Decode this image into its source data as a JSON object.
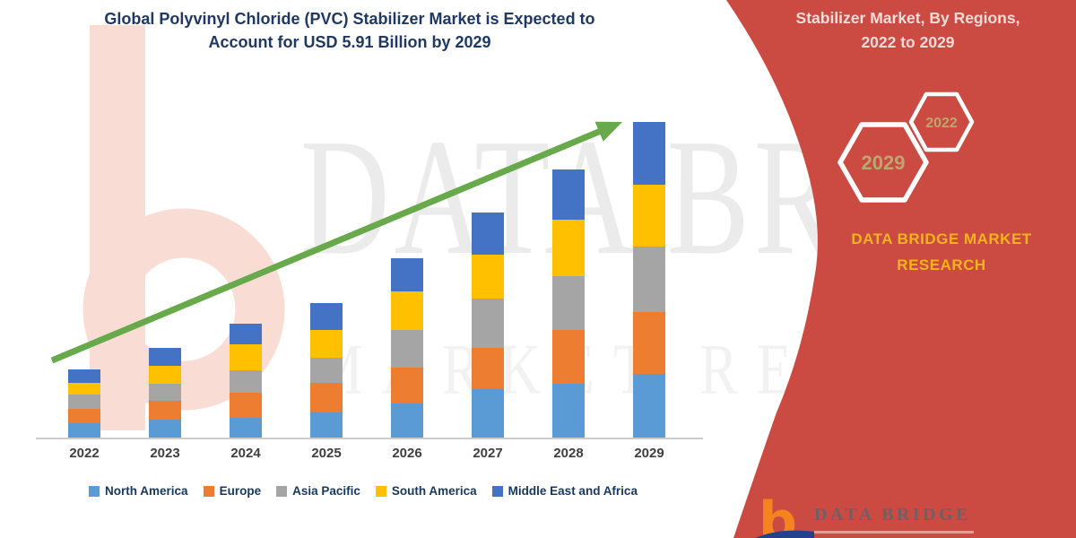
{
  "chart_data": {
    "type": "bar",
    "stacked": true,
    "title": "Global Polyvinyl Chloride (PVC) Stabilizer Market is Expected to Account for USD 5.91 Billion by 2029",
    "title_lines": [
      "Global Polyvinyl Chloride (PVC) Stabilizer Market is Expected to",
      "Account for USD 5.91 Billion by 2029"
    ],
    "unit": "USD Billion (segment values estimated from bar heights; 2029 total anchored to 5.91)",
    "categories": [
      "2022",
      "2023",
      "2024",
      "2025",
      "2026",
      "2027",
      "2028",
      "2029"
    ],
    "series": [
      {
        "name": "North America",
        "color": "#5b9bd5",
        "values": [
          0.28,
          0.35,
          0.39,
          0.49,
          0.65,
          0.92,
          1.02,
          1.21
        ]
      },
      {
        "name": "Europe",
        "color": "#ed7d31",
        "values": [
          0.27,
          0.35,
          0.47,
          0.55,
          0.67,
          0.77,
          1.0,
          1.15
        ]
      },
      {
        "name": "Asia Pacific",
        "color": "#a5a5a5",
        "values": [
          0.27,
          0.32,
          0.42,
          0.47,
          0.7,
          0.92,
          1.02,
          1.22
        ]
      },
      {
        "name": "South America",
        "color": "#ffc000",
        "values": [
          0.22,
          0.33,
          0.47,
          0.52,
          0.72,
          0.82,
          1.04,
          1.16
        ]
      },
      {
        "name": "Middle East and Africa",
        "color": "#4472c4",
        "values": [
          0.25,
          0.35,
          0.39,
          0.5,
          0.62,
          0.79,
          0.95,
          1.17
        ]
      }
    ],
    "totals": [
      1.29,
      1.7,
      2.14,
      2.53,
      3.36,
      4.22,
      5.03,
      5.91
    ],
    "xlabel": "",
    "ylabel": "",
    "y_axis_visible": false,
    "grid": false,
    "legend_position": "bottom",
    "annotations": [
      "green upward trend arrow across bars"
    ]
  },
  "panel": {
    "heading_lines": [
      "Stabilizer Market, By Regions,",
      "2022 to 2029"
    ],
    "hexagons": [
      {
        "label": "2029"
      },
      {
        "label": "2022"
      }
    ],
    "brand_lines": [
      "DATA BRIDGE MARKET",
      "RESEARCH"
    ],
    "bg_color": "#cb4a42",
    "heading_color": "#f6ddd8",
    "brand_color": "#f2b31b",
    "hex_label_color": "#bfa570"
  },
  "watermark": {
    "glyph": "b",
    "line1": "DATA BRIDGE",
    "line2": "MARKET RESEARCH"
  },
  "footer_logo": {
    "glyph": "b",
    "text": "DATA BRIDGE"
  },
  "colors": {
    "arrow_green": "#68a94b",
    "title_navy": "#1f3864",
    "axis_line": "#cccccc",
    "x_label": "#3f3f3f"
  }
}
